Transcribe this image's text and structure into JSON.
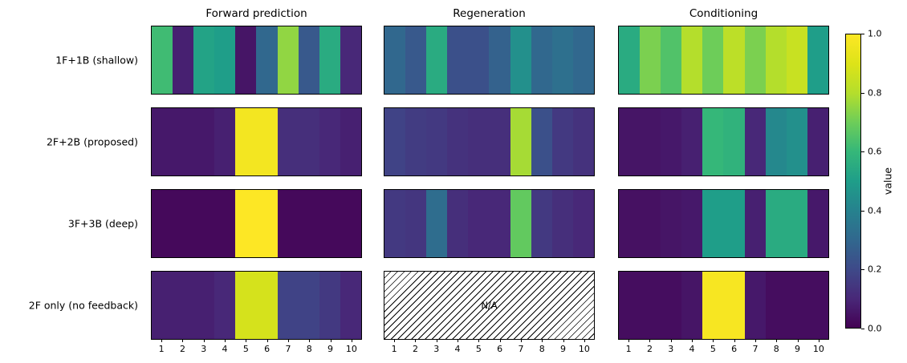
{
  "chart_data": {
    "type": "heatmap",
    "colormap": "viridis",
    "grid": false,
    "columns": [
      "Forward prediction",
      "Regeneration",
      "Conditioning"
    ],
    "row_labels": [
      "1F+1B (shallow)",
      "2F+2B (proposed)",
      "3F+3B (deep)",
      "2F only (no feedback)"
    ],
    "x_tick_labels": [
      "1",
      "2",
      "3",
      "4",
      "5",
      "6",
      "7",
      "8",
      "9",
      "10"
    ],
    "value_range": [
      0.0,
      1.0
    ],
    "na_label": "N/A",
    "na_cell": {
      "row": "2F only (no feedback)",
      "column": "Regeneration"
    },
    "colorbar": {
      "label": "value",
      "tick_labels": [
        "0.0",
        "0.2",
        "0.4",
        "0.6",
        "0.8",
        "1.0"
      ],
      "min": 0.0,
      "max": 1.0,
      "position": "right"
    },
    "values": {
      "Forward prediction": [
        [
          0.62,
          0.08,
          0.52,
          0.5,
          0.05,
          0.3,
          0.75,
          0.25,
          0.55,
          0.1
        ],
        [
          0.06,
          0.06,
          0.06,
          0.08,
          0.97,
          0.97,
          0.12,
          0.12,
          0.1,
          0.08
        ],
        [
          0.02,
          0.02,
          0.02,
          0.02,
          1.0,
          1.0,
          0.02,
          0.02,
          0.02,
          0.02
        ],
        [
          0.08,
          0.08,
          0.08,
          0.1,
          0.88,
          0.88,
          0.18,
          0.18,
          0.15,
          0.1
        ]
      ],
      "Regeneration": [
        [
          0.3,
          0.25,
          0.55,
          0.22,
          0.22,
          0.28,
          0.45,
          0.3,
          0.33,
          0.3
        ],
        [
          0.18,
          0.16,
          0.15,
          0.13,
          0.12,
          0.12,
          0.78,
          0.22,
          0.15,
          0.13
        ],
        [
          0.15,
          0.14,
          0.32,
          0.12,
          0.1,
          0.1,
          0.68,
          0.15,
          0.12,
          0.1
        ],
        null
      ],
      "Conditioning": [
        [
          0.55,
          0.72,
          0.65,
          0.8,
          0.7,
          0.82,
          0.72,
          0.8,
          0.85,
          0.5
        ],
        [
          0.05,
          0.05,
          0.06,
          0.08,
          0.6,
          0.58,
          0.1,
          0.42,
          0.45,
          0.08
        ],
        [
          0.04,
          0.04,
          0.05,
          0.06,
          0.5,
          0.5,
          0.08,
          0.55,
          0.55,
          0.06
        ],
        [
          0.03,
          0.03,
          0.03,
          0.05,
          0.98,
          0.98,
          0.06,
          0.03,
          0.03,
          0.03
        ]
      ]
    },
    "colormap_stops": [
      [
        0.0,
        "#440154"
      ],
      [
        0.1,
        "#482878"
      ],
      [
        0.2,
        "#3e4a89"
      ],
      [
        0.3,
        "#31688e"
      ],
      [
        0.4,
        "#26828e"
      ],
      [
        0.5,
        "#1f9e89"
      ],
      [
        0.6,
        "#35b779"
      ],
      [
        0.7,
        "#6dcd59"
      ],
      [
        0.8,
        "#b4de2c"
      ],
      [
        0.9,
        "#dde318"
      ],
      [
        1.0,
        "#fde725"
      ]
    ]
  }
}
